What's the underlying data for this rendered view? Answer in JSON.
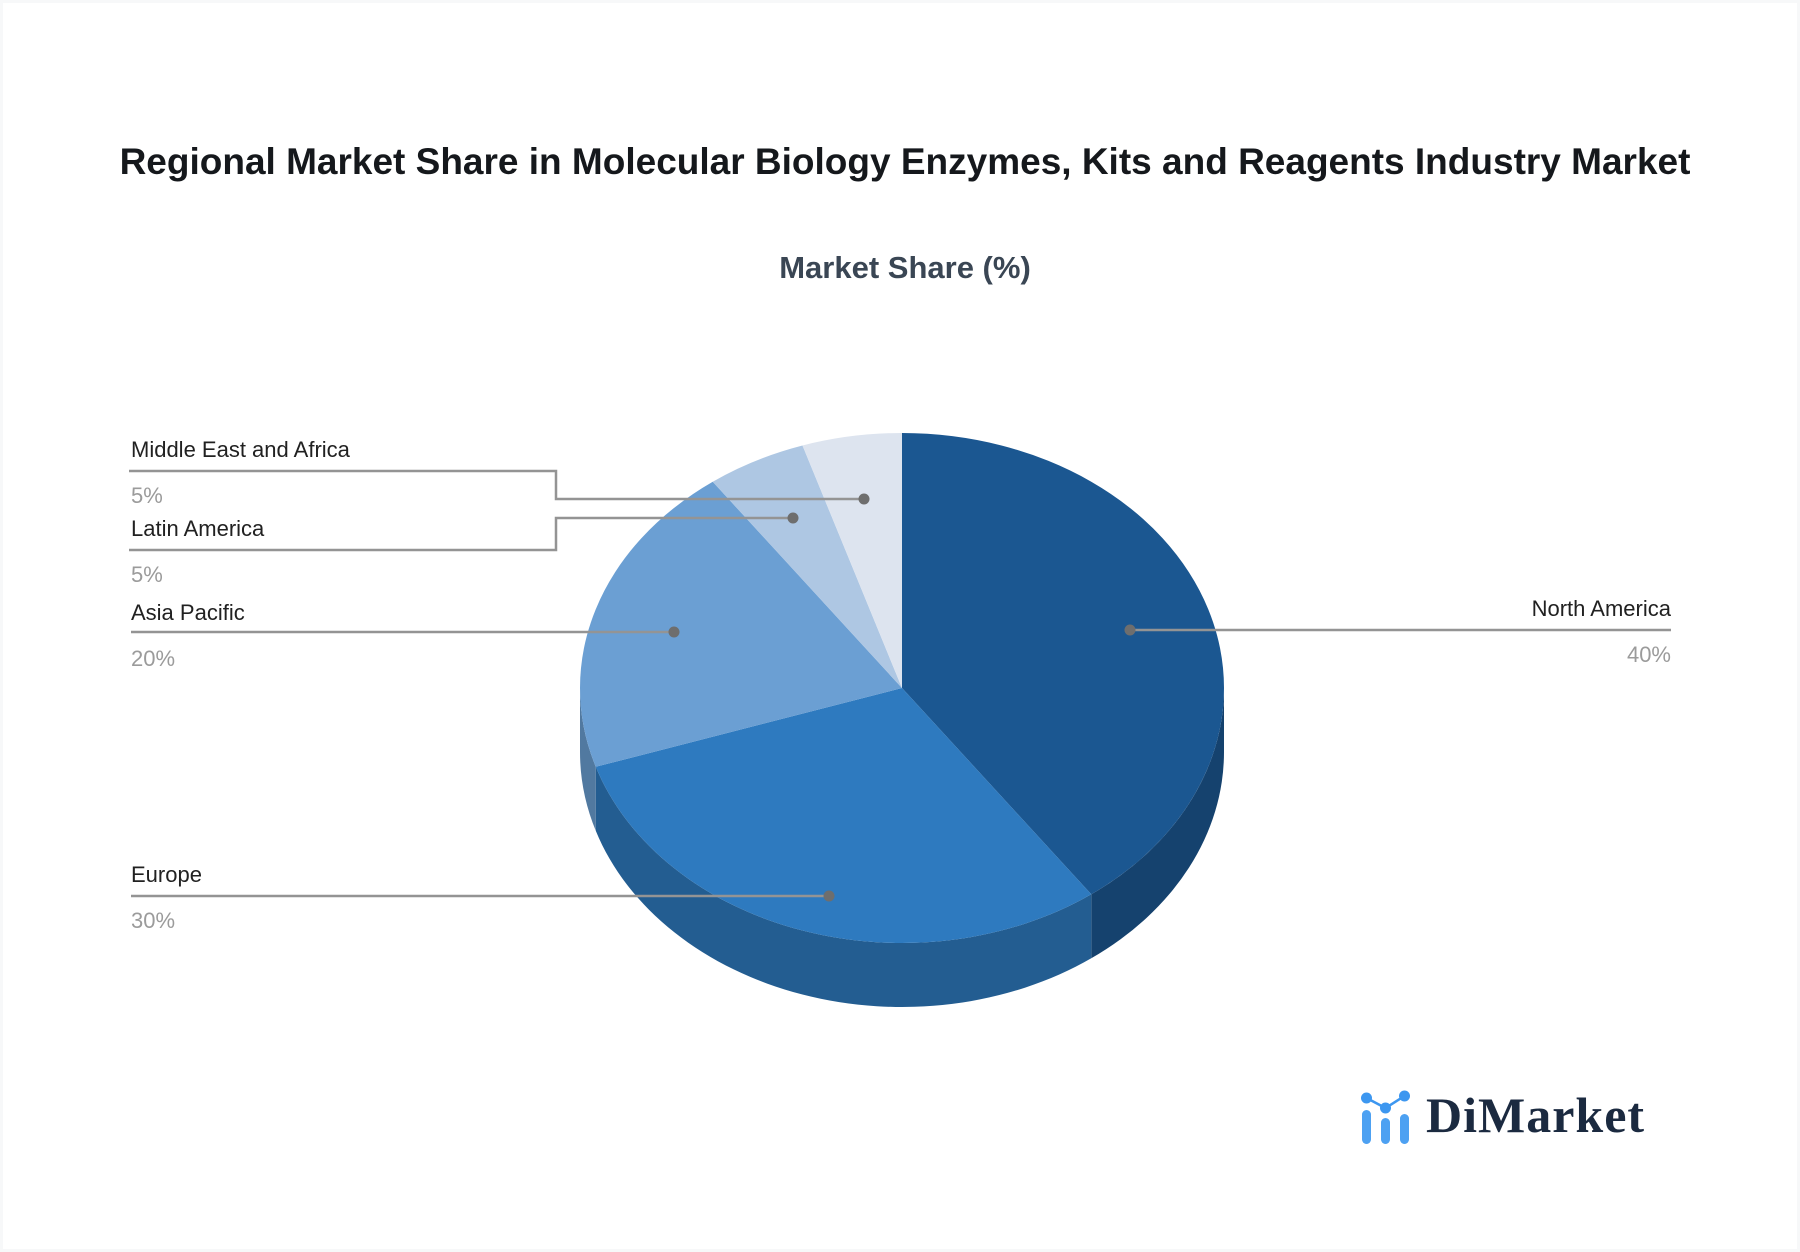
{
  "chart": {
    "title": "Regional Market Share in Molecular Biology Enzymes, Kits and Reagents Industry Market",
    "subtitle": "Market Share (%)"
  },
  "chart_data": {
    "type": "pie",
    "title": "Regional Market Share in Molecular Biology Enzymes, Kits and Reagents Industry Market",
    "subtitle": "Market Share (%)",
    "unit": "%",
    "effect_3d": true,
    "start_angle_deg": -90,
    "direction": "clockwise",
    "slices": [
      {
        "label": "North America",
        "value": 40,
        "pct_label": "40%",
        "color": "#1b5791"
      },
      {
        "label": "Europe",
        "value": 30,
        "pct_label": "30%",
        "color": "#2e7abf"
      },
      {
        "label": "Asia Pacific",
        "value": 20,
        "pct_label": "20%",
        "color": "#6b9fd3"
      },
      {
        "label": "Latin America",
        "value": 5,
        "pct_label": "5%",
        "color": "#aec7e3"
      },
      {
        "label": "Middle East and Africa",
        "value": 5,
        "pct_label": "5%",
        "color": "#dde4ef"
      }
    ],
    "colors": {
      "label_text": "#212121",
      "pct_text": "#9b9b9b",
      "leader_line": "#949494",
      "leader_dot": "#6e6e6e"
    }
  },
  "logo": {
    "text": "DiMarket",
    "text_color": "#1b2a40",
    "bar_color": "#4da1f2",
    "dot_color": "#3d97f0"
  }
}
